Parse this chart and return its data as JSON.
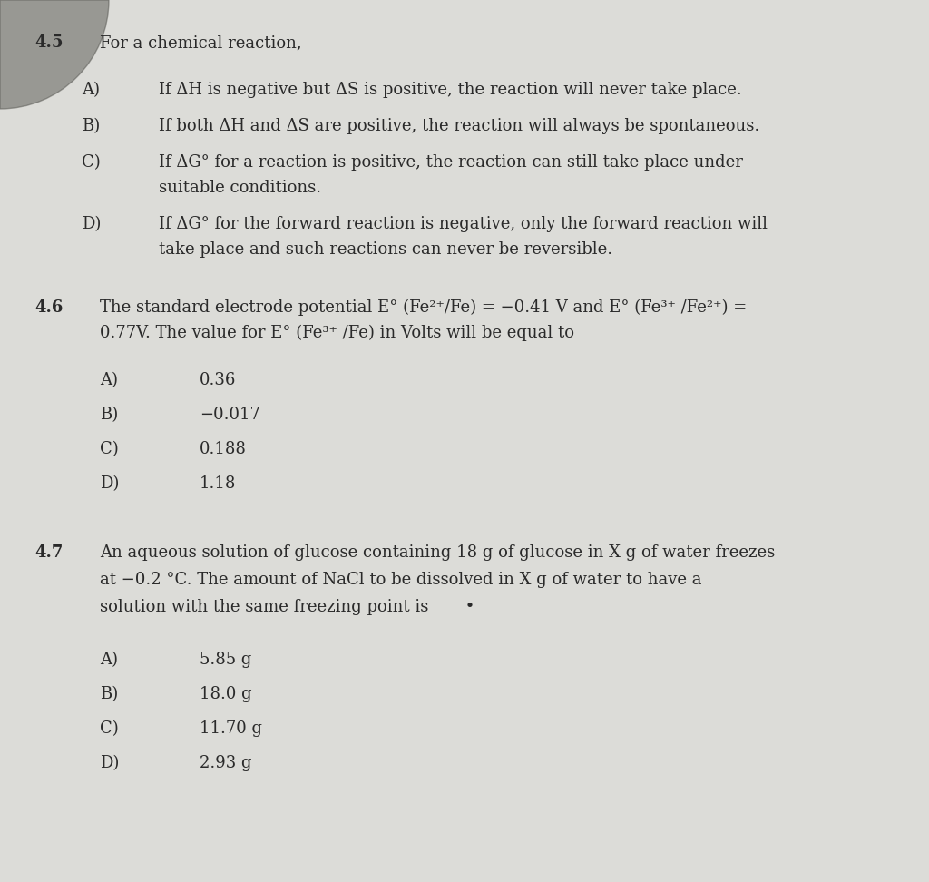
{
  "background_color": "#d8d8d5",
  "text_color": "#2a2a2a",
  "q45_number": "4.5",
  "q45_title": "For a chemical reaction,",
  "q46_number": "4.6",
  "q46_line1": "The standard electrode potential E° (Fe²⁺/Fe) = −0.41 V and E° (Fe³⁺ /Fe²⁺) =",
  "q46_line2": "0.77V. The value for E° (Fe³⁺ /Fe) in Volts will be equal to",
  "q46_A": "0.36",
  "q46_B": "−0.017",
  "q46_C": "0.188",
  "q46_D": "1.18",
  "q47_number": "4.7",
  "q47_line1": "An aqueous solution of glucose containing 18 g of glucose in X g of water freezes",
  "q47_line2": "at −0.2 °C. The amount of NaCl to be dissolved in X g of water to have a",
  "q47_line3": "solution with the same freezing point is",
  "q47_A": "5.85 g",
  "q47_B": "18.0 g",
  "q47_C": "11.70 g",
  "q47_D": "2.93 g",
  "corner_dark": "#555550",
  "page_color": "#dcdcd8"
}
